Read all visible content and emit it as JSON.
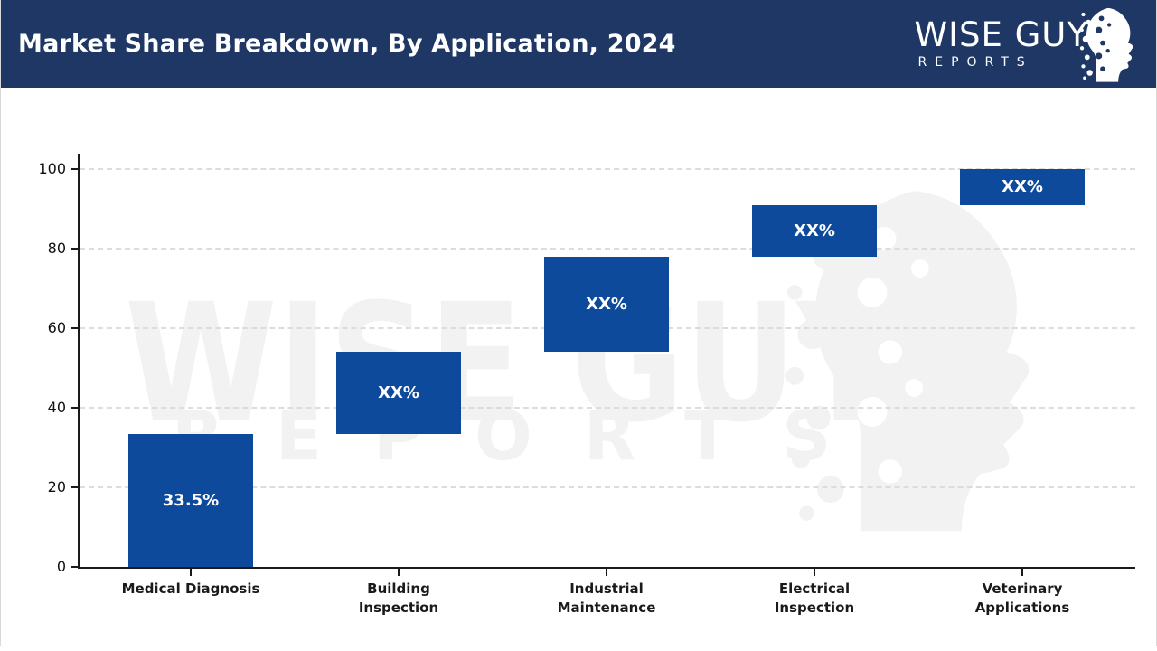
{
  "header": {
    "title": "Market Share Breakdown, By Application, 2024",
    "bg_color": "#1f3764",
    "logo": {
      "line1": "WISE GUY",
      "line2": "REPORTS"
    }
  },
  "watermark": {
    "line1": "WISE GUY",
    "line2": "REPORTS"
  },
  "colors": {
    "header_bg": "#1f3764",
    "bar_blue": "#0d4a9c",
    "axis": "#1a1a1a",
    "gridline": "#dcdcdc",
    "watermark_gray": "#f2f2f2",
    "label_text": "#ffffff"
  },
  "chart_data": {
    "type": "bar",
    "subtype": "waterfall-style stacked segments",
    "title": "Market Share Breakdown, By Application, 2024",
    "categories": [
      "Medical Diagnosis",
      "Building Inspection",
      "Industrial Maintenance",
      "Electrical Inspection",
      "Veterinary Applications"
    ],
    "category_lines": [
      [
        "Medical Diagnosis"
      ],
      [
        "Building",
        "Inspection"
      ],
      [
        "Industrial",
        "Maintenance"
      ],
      [
        "Electrical",
        "Inspection"
      ],
      [
        "Veterinary",
        "Applications"
      ]
    ],
    "segments": [
      [
        0,
        33.5
      ],
      [
        33.5,
        54
      ],
      [
        54,
        78
      ],
      [
        78,
        91
      ],
      [
        91,
        100
      ]
    ],
    "values": [
      33.5,
      20.5,
      24,
      13,
      9
    ],
    "bar_labels": [
      "33.5%",
      "XX%",
      "XX%",
      "XX%",
      "XX%"
    ],
    "xlabel": "",
    "ylabel": "",
    "ylim": [
      0,
      100
    ],
    "yticks": [
      0,
      20,
      40,
      60,
      80,
      100
    ],
    "grid": {
      "horizontal": true,
      "style": "dashed"
    },
    "legend": "none",
    "bar_color": "#0d4a9c"
  }
}
